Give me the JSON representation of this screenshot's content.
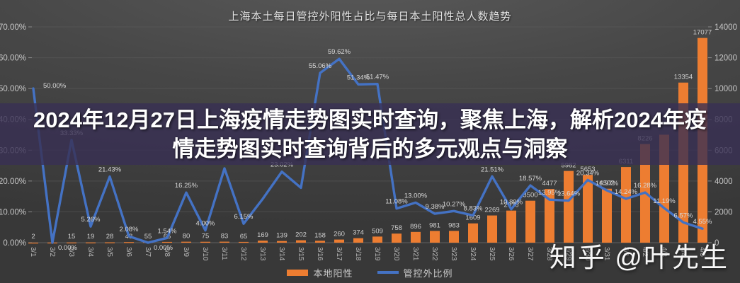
{
  "title": "上海本土每日管控外阳性占比与每日本土阳性总人数趋势",
  "banner": {
    "line1": "2024年12月27日上海疫情走势图实时查询，聚焦上海，解析2024年疫",
    "line2": "情走势图实时查询背后的多元观点与洞察"
  },
  "watermark": "知乎 @叶先生",
  "legend": [
    {
      "label": "本地阳性",
      "color": "#ED7D31",
      "type": "bar"
    },
    {
      "label": "管控外比例",
      "color": "#4472C4",
      "type": "line"
    }
  ],
  "colors": {
    "bar": "#ED7D31",
    "line": "#4472C4",
    "grid": "#5c5c5c",
    "axis_text": "#c8c8c8",
    "data_label": "#d9d9d9",
    "banner_bg": "rgba(56,47,84,0.80)"
  },
  "chart_data": {
    "type": "bar",
    "subtype": "combo-bar-line",
    "title": "上海本土每日管控外阳性占比与每日本土阳性总人数趋势",
    "categories": [
      "3/1",
      "3/2",
      "3/3",
      "3/4",
      "3/5",
      "3/6",
      "3/7",
      "3/8",
      "3/9",
      "3/10",
      "3/11",
      "3/12",
      "3/13",
      "3/14",
      "3/15",
      "3/16",
      "3/17",
      "3/18",
      "3/19",
      "3/20",
      "3/21",
      "3/22",
      "3/23",
      "3/24",
      "3/25",
      "3/26",
      "3/27",
      "3/28",
      "3/29",
      "3/30",
      "3/31",
      "4/1",
      "4/2",
      "4/3",
      "4/4",
      "4/5"
    ],
    "series": [
      {
        "name": "本地阳性",
        "type": "bar",
        "axis": "right",
        "values": [
          2,
          8,
          15,
          19,
          28,
          48,
          55,
          65,
          80,
          75,
          83,
          65,
          169,
          139,
          202,
          158,
          260,
          374,
          509,
          758,
          896,
          981,
          983,
          1609,
          2269,
          2676,
          3500,
          4477,
          5982,
          5653,
          4502,
          6311,
          8226,
          9006,
          13354,
          17077
        ]
      },
      {
        "name": "管控外比例",
        "type": "line",
        "axis": "left",
        "values": [
          50.0,
          0.0,
          33.33,
          5.26,
          21.43,
          2.08,
          0.0,
          1.54,
          16.25,
          4.0,
          24.1,
          6.15,
          14.2,
          23.02,
          17.82,
          55.06,
          59.62,
          51.34,
          51.47,
          11.08,
          13.0,
          9.38,
          10.27,
          8.83,
          21.51,
          10.89,
          18.57,
          13.95,
          13.64,
          20.34,
          16.97,
          14.24,
          16.28,
          11.19,
          6.57,
          4.55
        ]
      }
    ],
    "hidden_label_indices": {
      "line": [
        10,
        12,
        14
      ],
      "bar": [
        33
      ]
    },
    "left_axis": {
      "min": 0,
      "max": 70,
      "step": 10,
      "format": "percent",
      "labels": [
        "0.00%",
        "10.00%",
        "20.00%",
        "30.00%",
        "40.00%",
        "50.00%",
        "60.00%",
        "70.00%"
      ]
    },
    "right_axis": {
      "min": 0,
      "max": 18000,
      "step": 2000,
      "labels": [
        "0",
        "2000",
        "4000",
        "6000",
        "8000",
        "10000",
        "12000",
        "14000",
        "16000",
        "18000"
      ]
    },
    "grid": true,
    "legend_position": "bottom"
  }
}
